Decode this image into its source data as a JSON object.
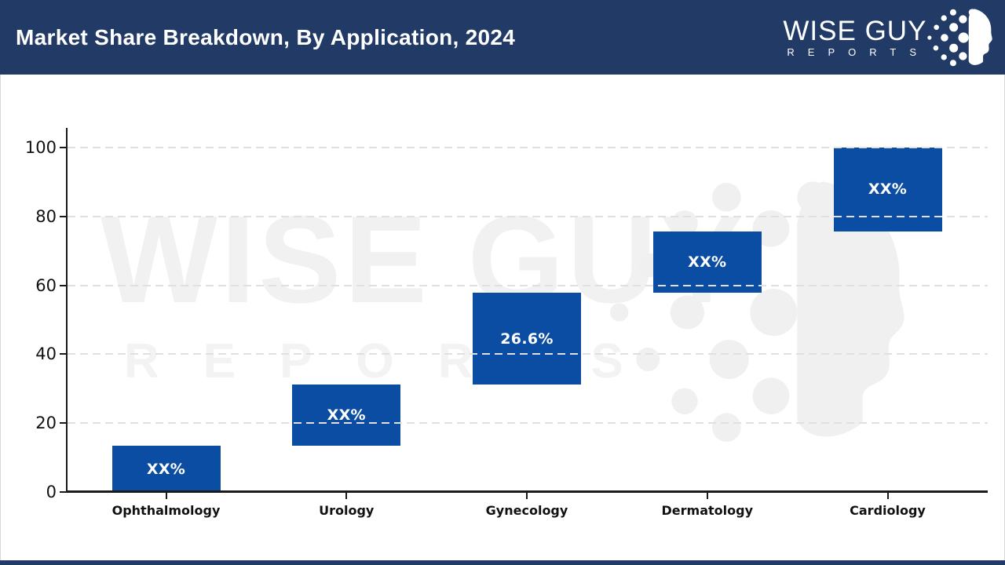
{
  "header": {
    "title": "Market Share Breakdown, By Application, 2024",
    "bg_color": "#213a66",
    "logo": {
      "line1": "WISE GUY",
      "line2": "REPORTS"
    }
  },
  "watermark": {
    "line1": "WISE GUY",
    "line2": "REPORTS"
  },
  "footer": {
    "bg_color": "#213a66"
  },
  "chart_data": {
    "type": "bar",
    "variant": "waterfall",
    "title": "Market Share Breakdown, By Application, 2024",
    "categories": [
      "Ophthalmology",
      "Urology",
      "Gynecology",
      "Dermatology",
      "Cardiology"
    ],
    "segments": [
      {
        "category": "Ophthalmology",
        "start": 0,
        "end": 13.4,
        "label": "XX%"
      },
      {
        "category": "Urology",
        "start": 13.4,
        "end": 31.2,
        "label": "XX%"
      },
      {
        "category": "Gynecology",
        "start": 31.2,
        "end": 57.8,
        "label": "26.6%"
      },
      {
        "category": "Dermatology",
        "start": 57.8,
        "end": 75.7,
        "label": "XX%"
      },
      {
        "category": "Cardiology",
        "start": 75.7,
        "end": 100,
        "label": "XX%"
      }
    ],
    "y_ticks": [
      0,
      20,
      40,
      60,
      80,
      100
    ],
    "ylim": [
      0,
      105
    ],
    "xlabel": "",
    "ylabel": "",
    "grid": "horizontal-dashed",
    "legend": "none",
    "colors": {
      "bar": "#0b4da2",
      "bar_label": "#ffffff",
      "axis": "#1a1a1a",
      "grid": "#e0e0e0",
      "watermark": "#f1f1f1"
    }
  }
}
